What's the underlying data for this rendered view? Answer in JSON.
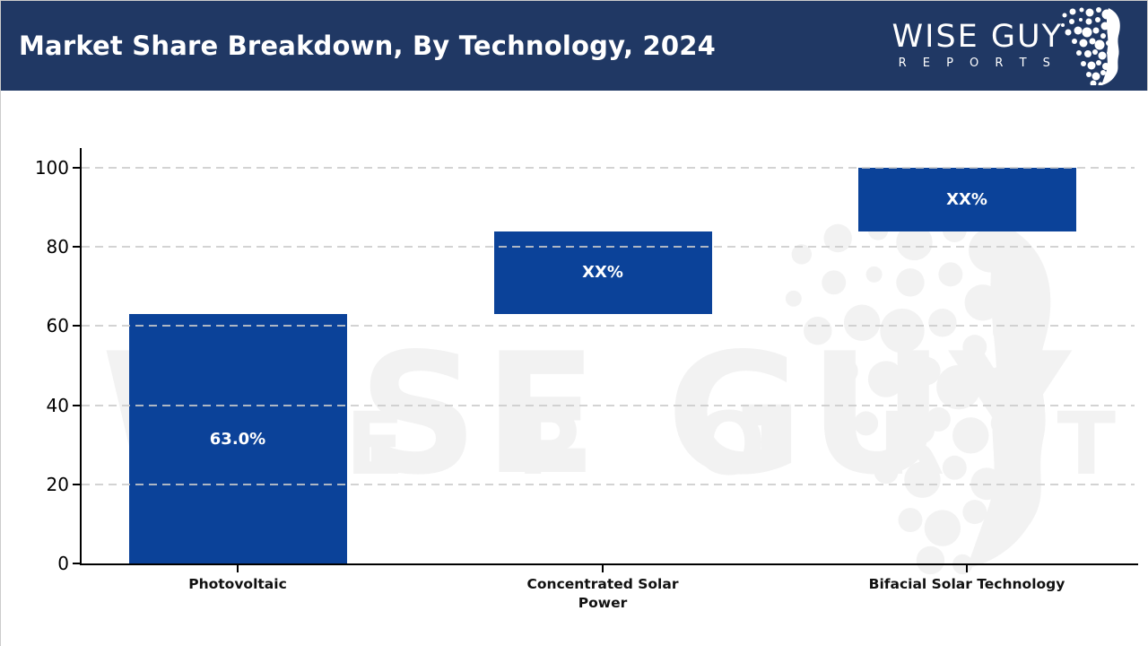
{
  "header": {
    "title": "Market Share Breakdown, By Technology, 2024"
  },
  "logo": {
    "name": "WISE GUY",
    "subtitle": "R E P O R T S",
    "face_icon": "dotted-head-profile"
  },
  "watermark": {
    "line1": "WISE GUY",
    "line2": "R E P O R T S",
    "face_icon": "dotted-head-profile"
  },
  "colors": {
    "header_bg": "#203864",
    "bar": "#0b4299",
    "bar_label": "#ffffff",
    "axis": "#000000",
    "gridline": "#cbcbcb",
    "watermark": "#f2f2f2",
    "page_border": "#cccccc"
  },
  "chart_data": {
    "type": "bar",
    "subtype": "waterfall",
    "title": "Market Share Breakdown, By Technology, 2024",
    "categories": [
      "Photovoltaic",
      "Concentrated Solar Power",
      "Bifacial Solar Technology"
    ],
    "segments": [
      {
        "category": "Photovoltaic",
        "start": 0,
        "end": 63,
        "label": "63.0%"
      },
      {
        "category": "Concentrated Solar Power",
        "start": 63,
        "end": 84,
        "label": "XX%"
      },
      {
        "category": "Bifacial Solar Technology",
        "start": 84,
        "end": 100,
        "label": "XX%"
      }
    ],
    "y_ticks": [
      0,
      20,
      40,
      60,
      80,
      100
    ],
    "ylim": [
      0,
      105
    ],
    "xlabel": "",
    "ylabel": "",
    "grid": "horizontal-dashed",
    "legend": "none"
  }
}
